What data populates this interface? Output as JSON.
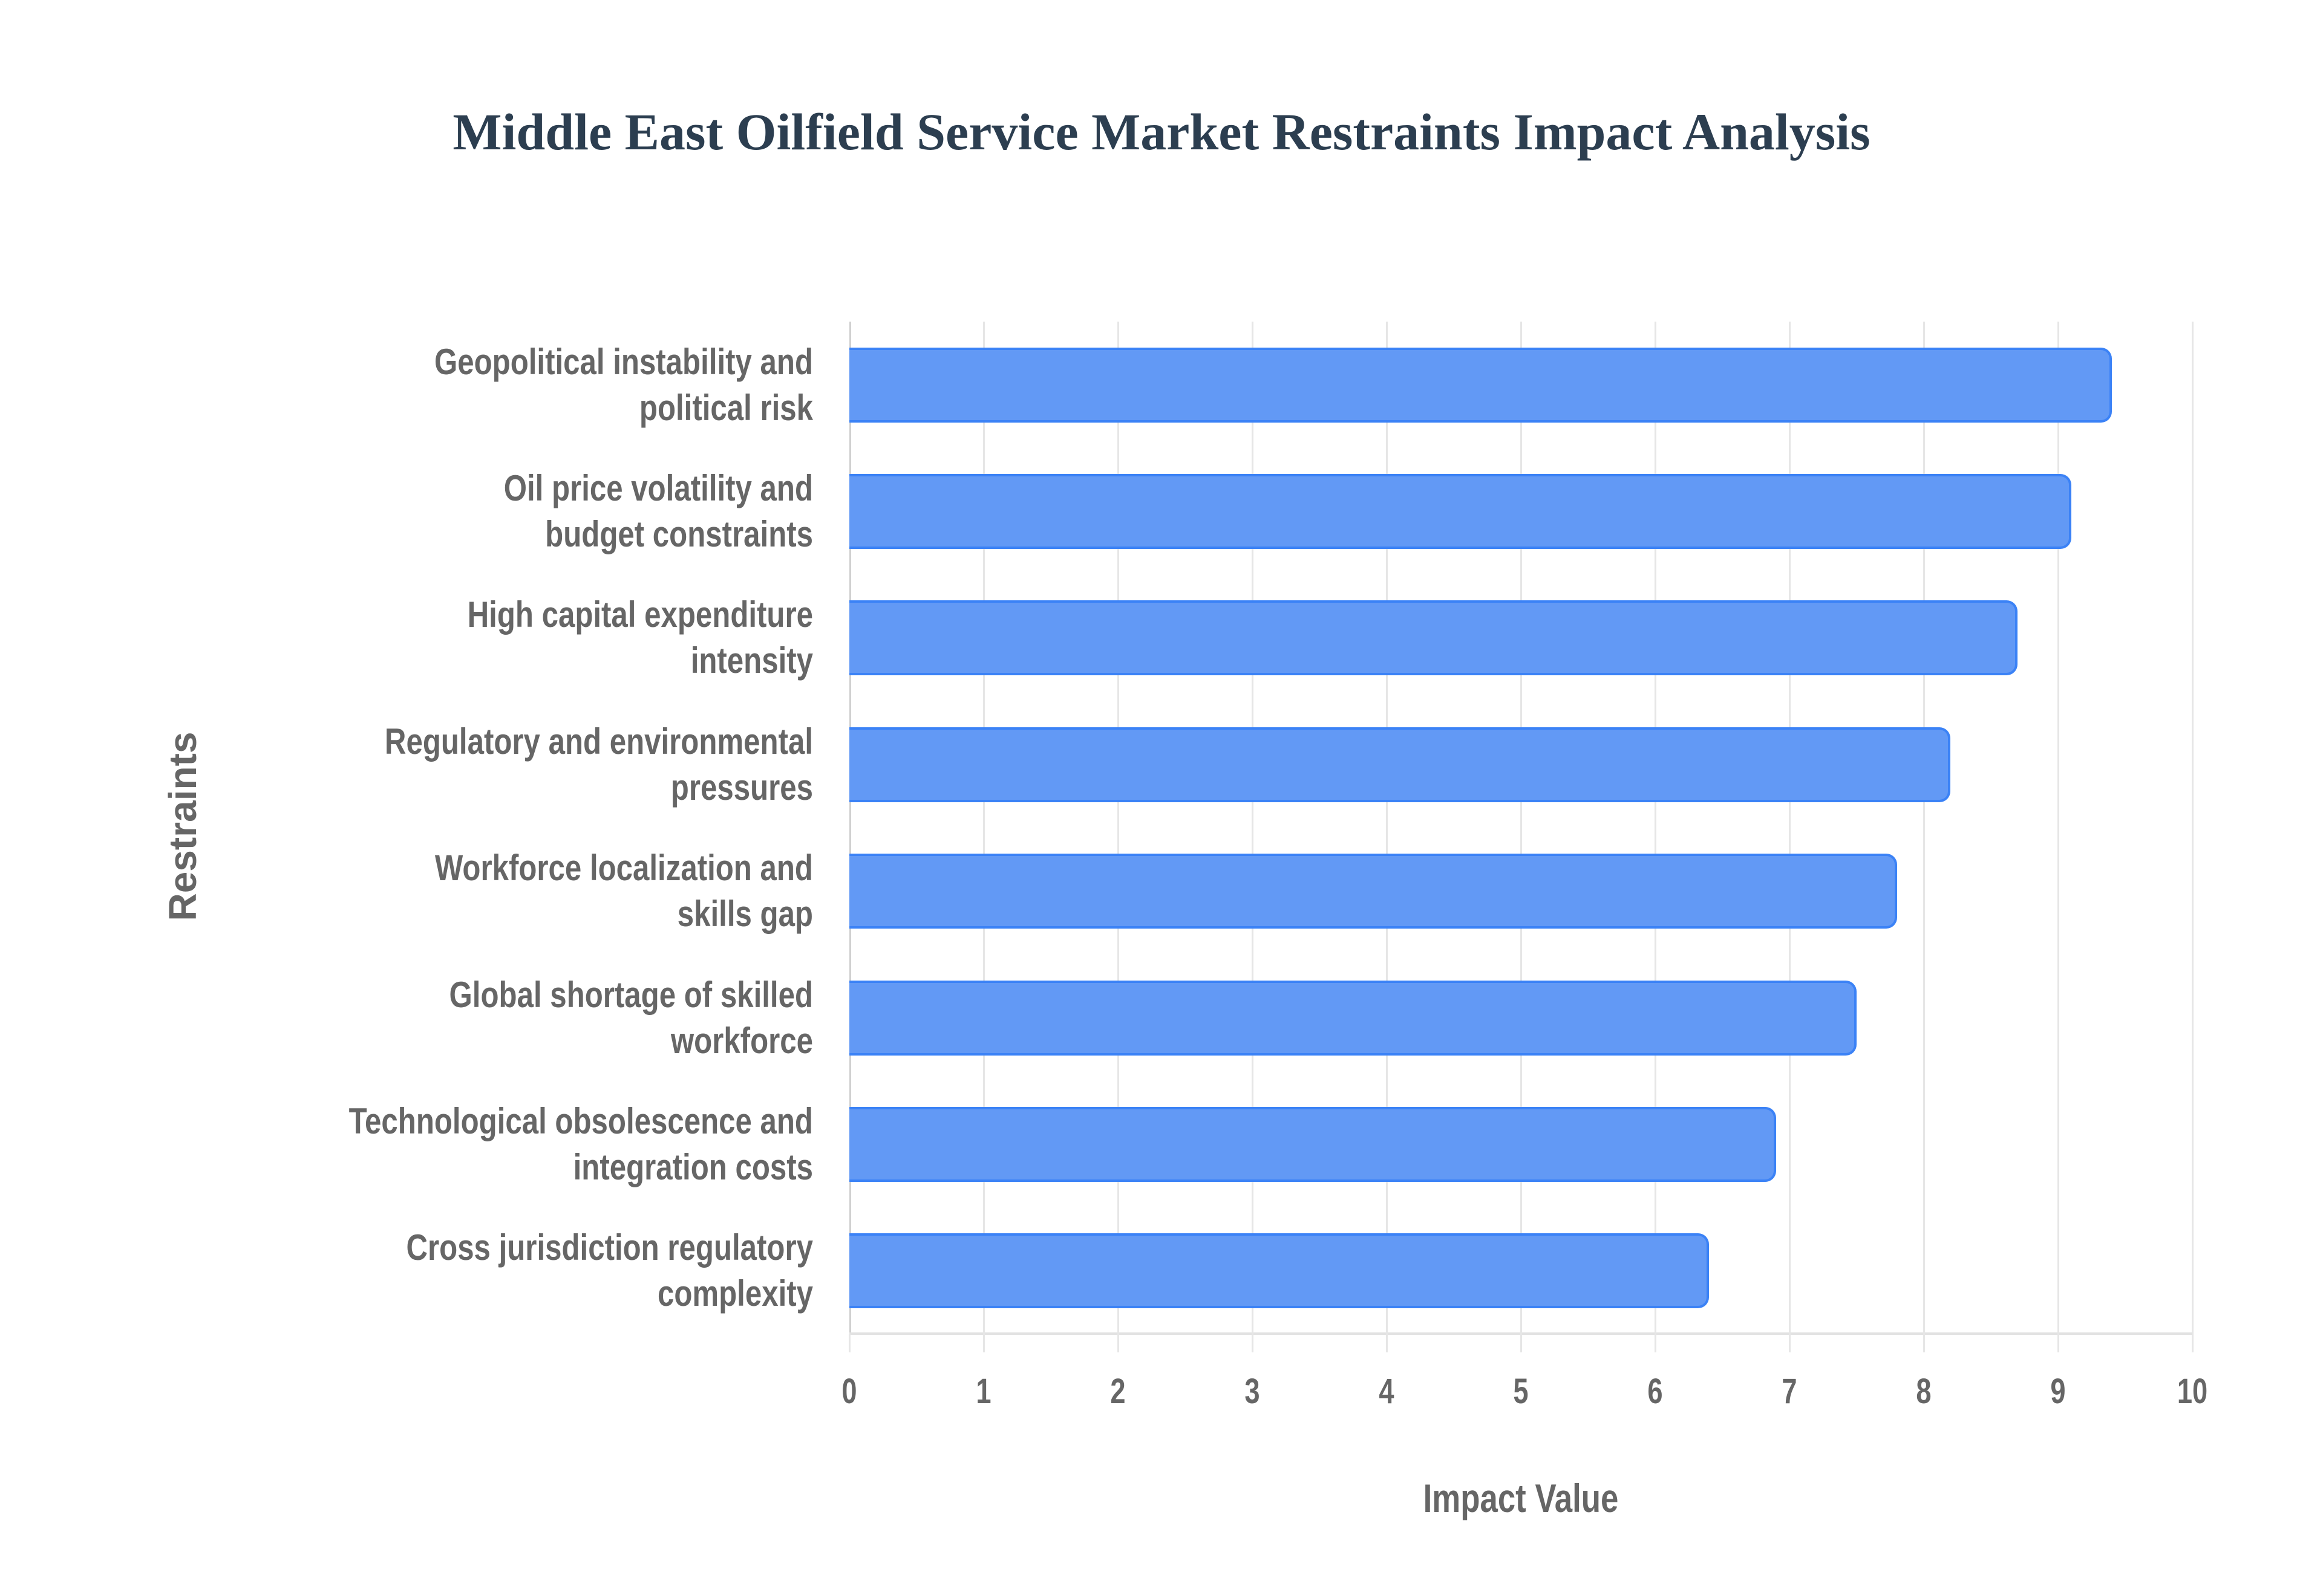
{
  "chart_data": {
    "type": "bar",
    "orientation": "horizontal",
    "title": "Middle East Oilfield Service Market Restraints Impact Analysis",
    "xlabel": "Impact Value",
    "ylabel": "Restraints",
    "xlim": [
      0,
      10
    ],
    "x_ticks": [
      "0",
      "1",
      "2",
      "3",
      "4",
      "5",
      "6",
      "7",
      "8",
      "9",
      "10"
    ],
    "grid": true,
    "legend": null,
    "bar_color": "#6299f5",
    "bar_border_color": "#3b82f6",
    "categories": [
      [
        "Geopolitical instability and",
        "political risk"
      ],
      [
        "Oil price volatility and",
        "budget constraints"
      ],
      [
        "High capital expenditure",
        "intensity"
      ],
      [
        "Regulatory and environmental",
        "pressures"
      ],
      [
        "Workforce localization and",
        "skills gap"
      ],
      [
        "Global shortage of skilled",
        "workforce"
      ],
      [
        "Technological obsolescence and",
        "integration costs"
      ],
      [
        "Cross jurisdiction regulatory",
        "complexity"
      ]
    ],
    "category_names": [
      "Geopolitical instability and political risk",
      "Oil price volatility and budget constraints",
      "High capital expenditure intensity",
      "Regulatory and environmental pressures",
      "Workforce localization and skills gap",
      "Global shortage of skilled workforce",
      "Technological obsolescence and integration costs",
      "Cross jurisdiction regulatory complexity"
    ],
    "values": [
      9.4,
      9.1,
      8.7,
      8.2,
      7.8,
      7.5,
      6.9,
      6.4
    ]
  }
}
